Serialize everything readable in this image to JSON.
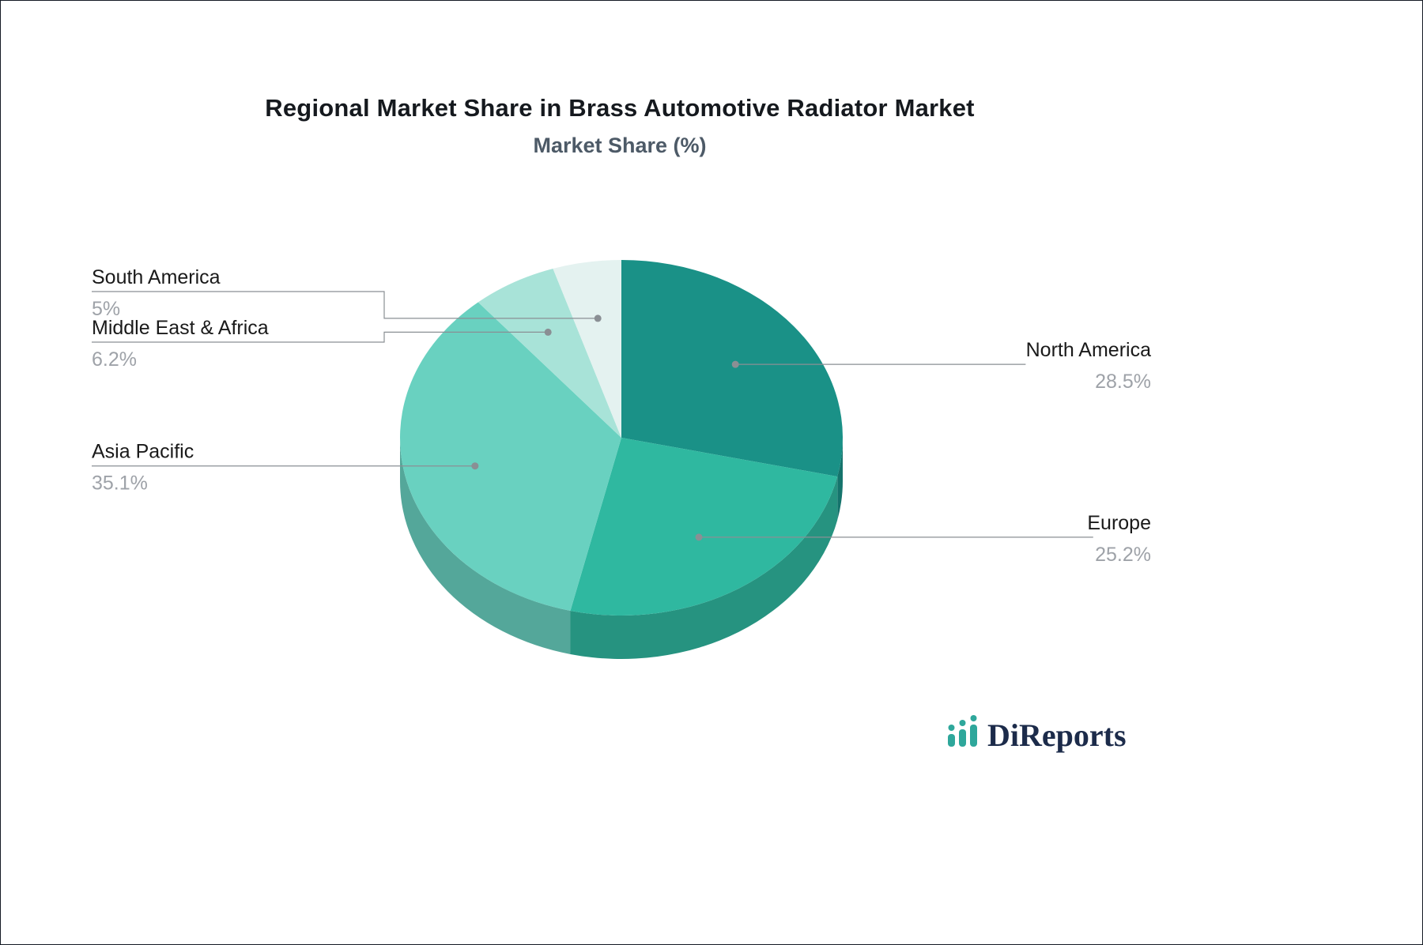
{
  "chart_data": {
    "type": "pie",
    "title": "Regional Market Share in Brass Automotive Radiator Market",
    "subtitle": "Market Share (%)",
    "style": "3d",
    "direction": "clockwise",
    "start_angle_deg": 0,
    "legend": "none",
    "segments": [
      {
        "name": "North America",
        "value": 28.5,
        "label": "28.5%",
        "color": "#1A9187"
      },
      {
        "name": "Europe",
        "value": 25.2,
        "label": "25.2%",
        "color": "#2FB8A0"
      },
      {
        "name": "Asia Pacific",
        "value": 35.1,
        "label": "35.1%",
        "color": "#69D1C0"
      },
      {
        "name": "Middle East & Africa",
        "value": 6.2,
        "label": "6.2%",
        "color": "#A8E3D8"
      },
      {
        "name": "South America",
        "value": 5,
        "label": "5%",
        "color": "#E4F2F0"
      }
    ],
    "label_name_color": "#1a1a1a",
    "label_value_color": "#9ea2a8",
    "connector_color": "#8a8f94"
  },
  "branding": {
    "logo_text": "DiReports",
    "logo_text_color": "#1c2b4a",
    "logo_icon": "bar-chart-icon",
    "logo_icon_color": "#2EA79B"
  }
}
